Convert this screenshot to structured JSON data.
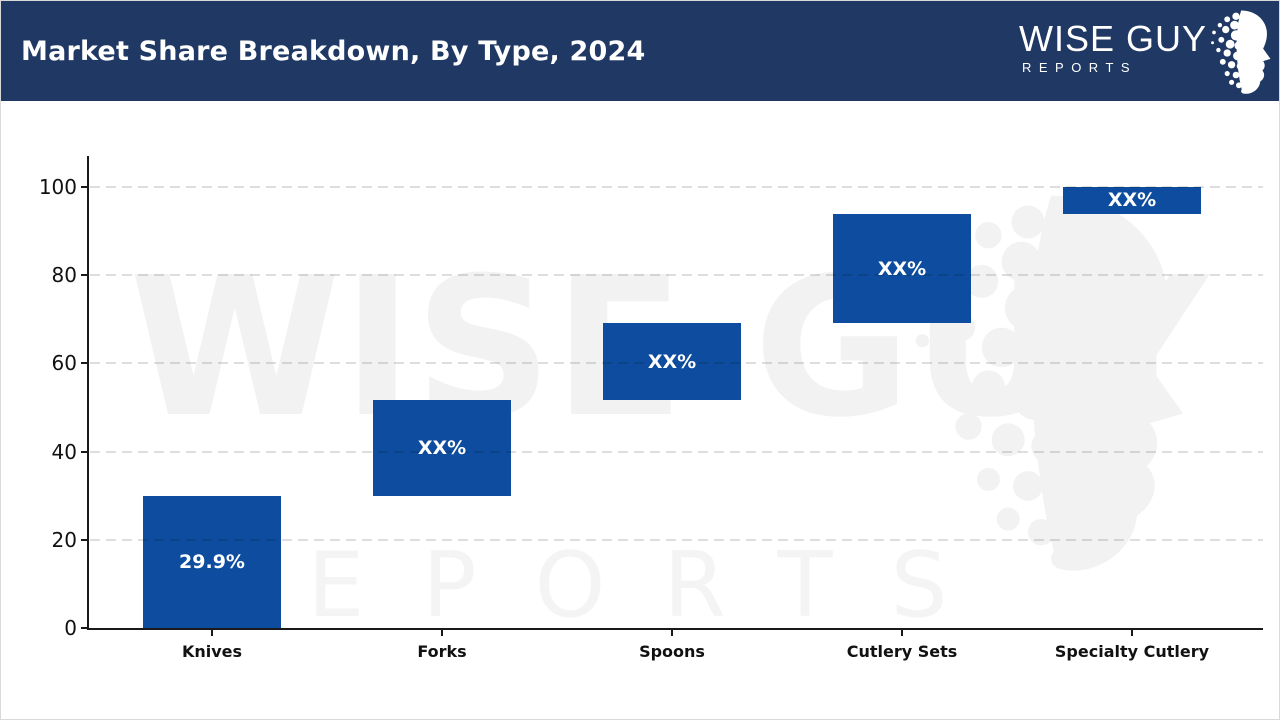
{
  "header": {
    "title": "Market Share Breakdown, By Type, 2024",
    "logo": {
      "name": "WISE GUY",
      "sub": "REPORTS"
    }
  },
  "watermark": {
    "line1": "WISE GUY",
    "line2": "REPORTS"
  },
  "chart_data": {
    "type": "bar",
    "subtype": "waterfall",
    "title": "Market Share Breakdown, By Type, 2024",
    "categories": [
      "Knives",
      "Forks",
      "Spoons",
      "Cutlery Sets",
      "Specialty Cutlery"
    ],
    "segments": [
      {
        "category": "Knives",
        "from": 0,
        "to": 29.9,
        "label": "29.9%"
      },
      {
        "category": "Forks",
        "from": 29.9,
        "to": 51.6,
        "label": "XX%"
      },
      {
        "category": "Spoons",
        "from": 51.6,
        "to": 69.1,
        "label": "XX%"
      },
      {
        "category": "Cutlery Sets",
        "from": 69.1,
        "to": 93.9,
        "label": "XX%"
      },
      {
        "category": "Specialty Cutlery",
        "from": 93.9,
        "to": 100,
        "label": "XX%"
      }
    ],
    "yticks": [
      0,
      20,
      40,
      60,
      80,
      100
    ],
    "ylim": [
      0,
      107
    ],
    "xlabel": "",
    "ylabel": "",
    "grid": "dashed-horizontal",
    "legend": "none"
  },
  "colors": {
    "header_bg": "#1f3864",
    "bar": "#0d4c9e",
    "bar_label": "#ffffff",
    "axis": "#1a1a1a",
    "grid": "#e2e2e2",
    "watermark": "#f2f2f2"
  }
}
